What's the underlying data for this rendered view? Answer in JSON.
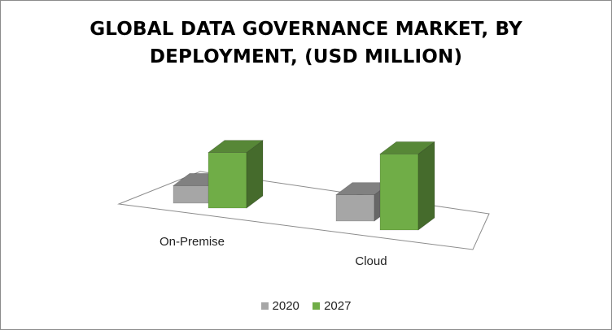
{
  "chart_data": {
    "type": "bar",
    "style": "3d-clustered-column",
    "title": "GLOBAL DATA GOVERNANCE MARKET, BY DEPLOYMENT,  (USD MILLION)",
    "xlabel": "",
    "ylabel": "",
    "categories": [
      "On-Premise",
      "Cloud"
    ],
    "series": [
      {
        "name": "2020",
        "color": "#a6a6a6",
        "values": [
          12,
          18
        ]
      },
      {
        "name": "2027",
        "color": "#70ad47",
        "values": [
          38,
          52
        ]
      }
    ],
    "grid": false,
    "legend_position": "bottom"
  }
}
